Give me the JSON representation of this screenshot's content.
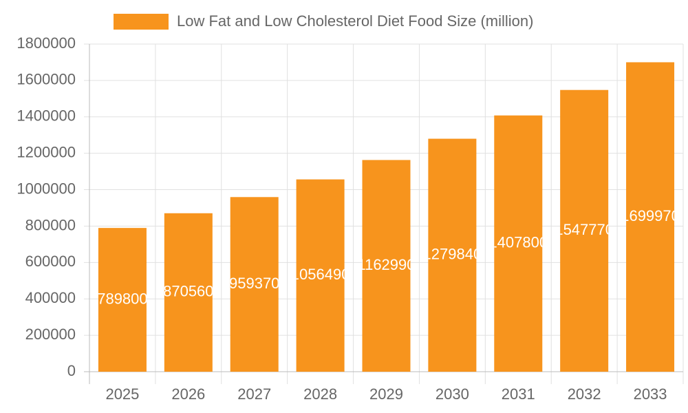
{
  "chart_data": {
    "type": "bar",
    "categories": [
      "2025",
      "2026",
      "2027",
      "2028",
      "2029",
      "2030",
      "2031",
      "2032",
      "2033"
    ],
    "series": [
      {
        "name": "Low Fat and Low Cholesterol Diet Food Size (million)",
        "color": "#f7941d",
        "values": [
          789800,
          870560,
          959370,
          1056490,
          1162990,
          1279840,
          1407800,
          1547770,
          1699970
        ]
      }
    ],
    "ylim": [
      0,
      1800000
    ],
    "yticks": [
      0,
      200000,
      400000,
      600000,
      800000,
      1000000,
      1200000,
      1400000,
      1600000,
      1800000
    ],
    "grid": true,
    "legend": "top",
    "data_labels": true
  }
}
